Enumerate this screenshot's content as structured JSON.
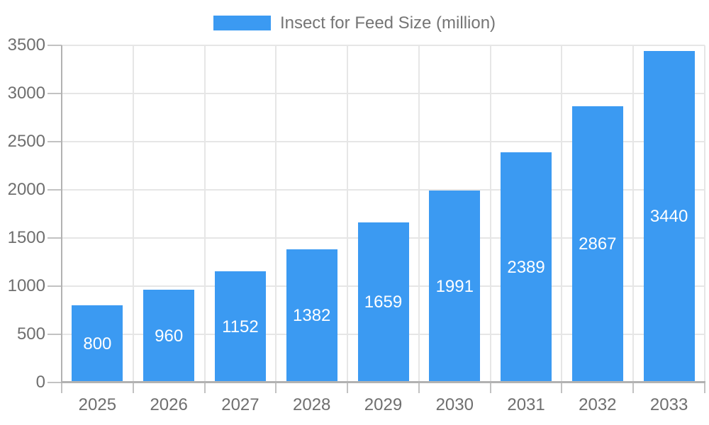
{
  "chart_data": {
    "type": "bar",
    "title": "Insect for Feed Size (million)",
    "legend": {
      "label": "Insect for Feed Size (million)",
      "position": "top"
    },
    "categories": [
      "2025",
      "2026",
      "2027",
      "2028",
      "2029",
      "2030",
      "2031",
      "2032",
      "2033"
    ],
    "series": [
      {
        "name": "Insect for Feed Size (million)",
        "values": [
          800,
          960,
          1152,
          1382,
          1659,
          1991,
          2389,
          2867,
          3440
        ]
      }
    ],
    "value_labels": "inside-center",
    "xlabel": "",
    "ylabel": "",
    "ylim": [
      0,
      3500
    ],
    "yticks": [
      0,
      500,
      1000,
      1500,
      2000,
      2500,
      3000,
      3500
    ],
    "grid": true,
    "colors": {
      "bar": "#3B9AF2",
      "grid": "#e6e6e6",
      "axis": "#b2b2b2",
      "tick": "#c2c2c2",
      "axis_text": "#6f6f6f",
      "legend_text": "#757575",
      "value_text": "#ffffff",
      "background": "#ffffff"
    }
  }
}
